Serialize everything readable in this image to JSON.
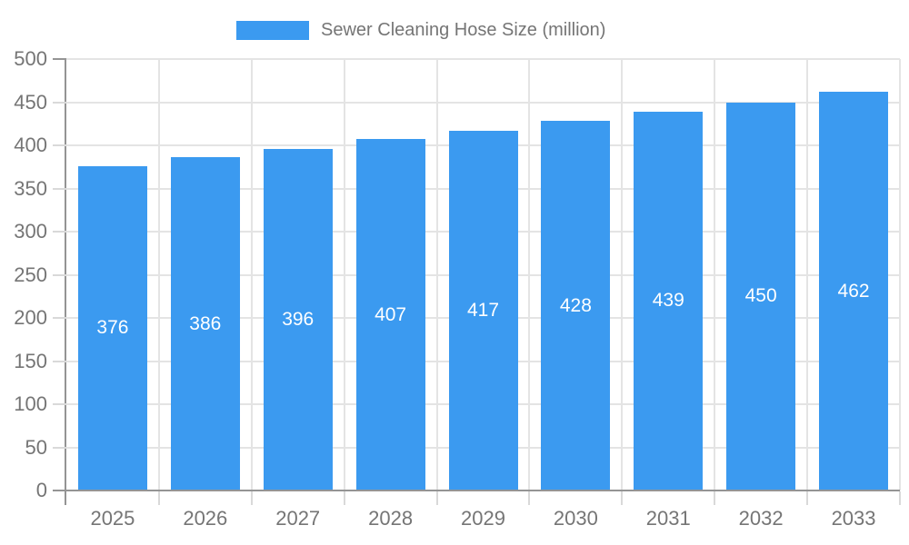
{
  "chart_data": {
    "type": "bar",
    "title": "Sewer Cleaning Hose Size (million)",
    "categories": [
      "2025",
      "2026",
      "2027",
      "2028",
      "2029",
      "2030",
      "2031",
      "2032",
      "2033"
    ],
    "values": [
      376,
      386,
      396,
      407,
      417,
      428,
      439,
      450,
      462
    ],
    "bar_labels": [
      "376",
      "386",
      "396",
      "407",
      "417",
      "428",
      "439",
      "450",
      "462"
    ],
    "xlabel": "",
    "ylabel": "",
    "ylim": [
      0,
      500
    ],
    "ytick_step": 50,
    "ytick_labels": [
      "0",
      "50",
      "100",
      "150",
      "200",
      "250",
      "300",
      "350",
      "400",
      "450",
      "500"
    ],
    "grid": true,
    "legend": {
      "position": "top",
      "label": "Sewer Cleaning Hose Size (million)"
    }
  },
  "colors": {
    "bar": "#3b9af0",
    "grid": "#e4e4e4",
    "axis": "#949494",
    "tick": "#d9d9d9",
    "tick_text": "#757575",
    "bar_label_text": "#ffffff",
    "legend_text": "#757575",
    "background": "#ffffff"
  }
}
